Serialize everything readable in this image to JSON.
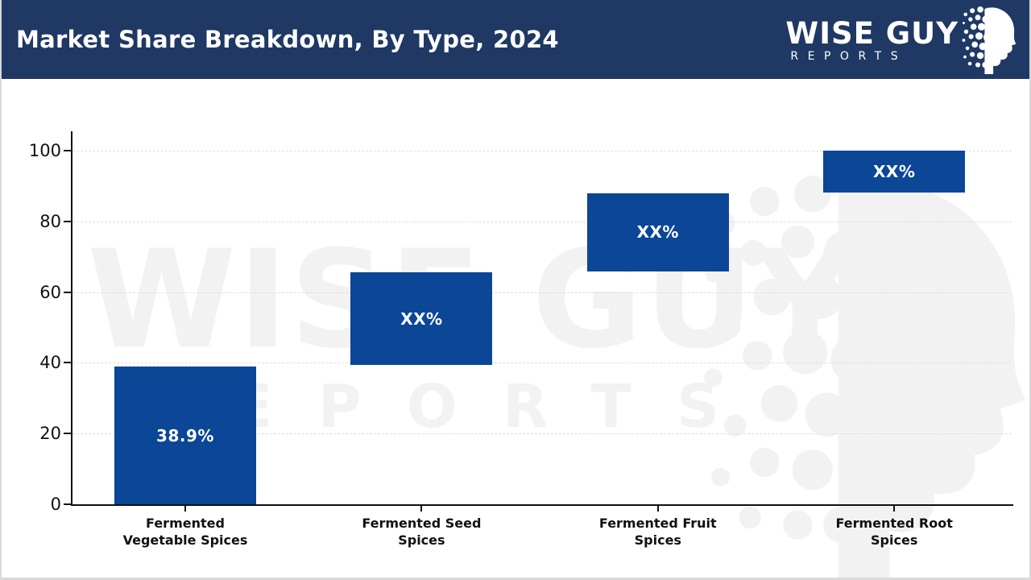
{
  "page": {
    "background": "#ffffff",
    "border_color": "#d9d9d9"
  },
  "header": {
    "bg_color": "#1f3864",
    "title": "Market Share Breakdown, By Type, 2024",
    "logo": {
      "name": "WISE GUY",
      "sub": "REPORTS"
    }
  },
  "watermark": {
    "name": "WISE GUY",
    "sub": "REPORTS"
  },
  "chart_data": {
    "type": "bar",
    "subtype": "waterfall-floating-segments",
    "title": "Market Share Breakdown, By Type, 2024",
    "xlabel": "",
    "ylabel": "",
    "ylim": [
      0,
      105
    ],
    "yticks": [
      0,
      20,
      40,
      60,
      80,
      100
    ],
    "grid": "horizontal dashed light-gray",
    "legend": "none",
    "bar_color": "#0b4697",
    "value_label_color": "#ffffff",
    "categories": [
      [
        "Fermented",
        "Vegetable Spices"
      ],
      [
        "Fermented Seed",
        "Spices"
      ],
      [
        "Fermented Fruit",
        "Spices"
      ],
      [
        "Fermented Root",
        "Spices"
      ]
    ],
    "segments": [
      {
        "start": 0,
        "end": 38.9,
        "label": "38.9%"
      },
      {
        "start": 39.3,
        "end": 65.6,
        "label": "XX%"
      },
      {
        "start": 65.9,
        "end": 87.9,
        "label": "XX%"
      },
      {
        "start": 88.1,
        "end": 100,
        "label": "XX%"
      }
    ]
  }
}
